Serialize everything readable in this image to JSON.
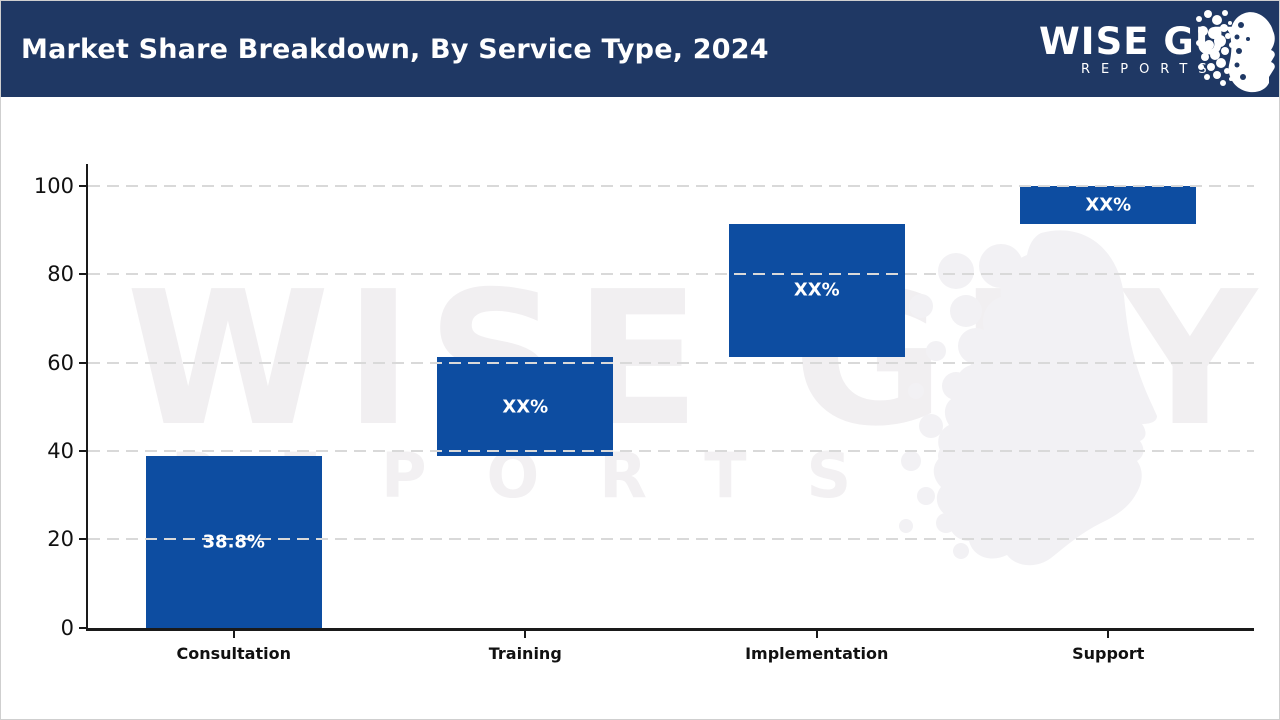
{
  "header": {
    "title": "Market Share Breakdown, By Service Type, 2024",
    "bg_color": "#1f3864",
    "logo": {
      "line1": "WISE GUY",
      "line2": "REPORTS"
    }
  },
  "watermark": {
    "line1": "WISE GUY",
    "line2": "REPORTS"
  },
  "chart_data": {
    "type": "bar",
    "subtype": "floating-segment-waterfall",
    "title": "Market Share Breakdown, By Service Type, 2024",
    "categories": [
      "Consultation",
      "Training",
      "Implementation",
      "Support"
    ],
    "series": [
      {
        "name": "Market Share (%)",
        "segments": [
          {
            "category": "Consultation",
            "start": 0,
            "end": 38.8,
            "label": "38.8%"
          },
          {
            "category": "Training",
            "start": 38.8,
            "end": 61.2,
            "label": "XX%"
          },
          {
            "category": "Implementation",
            "start": 61.2,
            "end": 91.5,
            "label": "XX%"
          },
          {
            "category": "Support",
            "start": 91.5,
            "end": 100,
            "label": "XX%"
          }
        ]
      }
    ],
    "xlabel": "",
    "ylabel": "",
    "ylim": [
      0,
      100
    ],
    "yticks": [
      0,
      20,
      40,
      60,
      80,
      100
    ],
    "grid": "horizontal-dashed-over-bars",
    "legend": "none",
    "bar_color": "#0d4da1",
    "bar_label_color": "#ffffff",
    "grid_color": "#d9d9d9",
    "axis_color": "#1a1a1a"
  }
}
